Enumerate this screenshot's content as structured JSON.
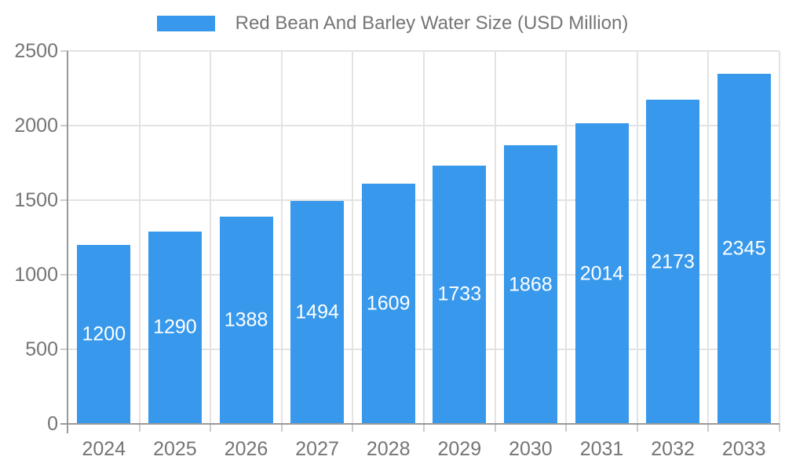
{
  "chart_data": {
    "type": "bar",
    "title": "Red Bean And Barley Water Size (USD Million)",
    "categories": [
      "2024",
      "2025",
      "2026",
      "2027",
      "2028",
      "2029",
      "2030",
      "2031",
      "2032",
      "2033"
    ],
    "values": [
      1200,
      1290,
      1388,
      1494,
      1609,
      1733,
      1868,
      2014,
      2173,
      2345
    ],
    "xlabel": "",
    "ylabel": "",
    "ylim": [
      0,
      2500
    ],
    "yticks": [
      0,
      500,
      1000,
      1500,
      2000,
      2500
    ],
    "grid": true,
    "legend_position": "top",
    "bar_value_labels_shown": true
  },
  "colors": {
    "bar": "#3899ec",
    "bar_value_label": "#ffffff",
    "axis_line": "#999999",
    "grid_line": "#e3e3e3",
    "tick": "#cccccc",
    "axis_text": "#757575",
    "legend_text": "#757575",
    "background": "#ffffff"
  }
}
